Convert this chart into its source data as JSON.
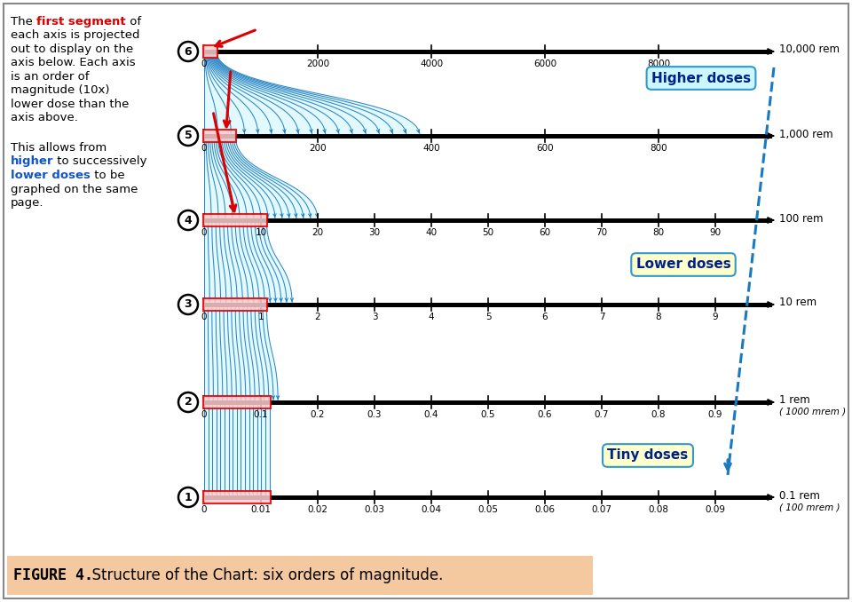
{
  "fig_width": 9.6,
  "fig_height": 6.78,
  "bg_color": "#ffffff",
  "caption_bg": "#f5c9a0",
  "line_color": "#1a7abf",
  "cyan_fill": "#aaf0ff",
  "dashed_arrow_color": "#1a7abf",
  "red_color": "#dd0000",
  "axes_max": [
    10000,
    1000,
    100,
    10,
    1.0,
    0.1
  ],
  "axes_ticks": [
    [
      0,
      2000,
      4000,
      6000,
      8000
    ],
    [
      0,
      200,
      400,
      600,
      800
    ],
    [
      0,
      10,
      20,
      30,
      40,
      50,
      60,
      70,
      80,
      90
    ],
    [
      0,
      1,
      2,
      3,
      4,
      5,
      6,
      7,
      8,
      9
    ],
    [
      0,
      0.1,
      0.2,
      0.3,
      0.4,
      0.5,
      0.6,
      0.7,
      0.8,
      0.9
    ],
    [
      0,
      0.01,
      0.02,
      0.03,
      0.04,
      0.05,
      0.06,
      0.07,
      0.08,
      0.09
    ]
  ],
  "axes_tick_labels": [
    [
      "0",
      "2000",
      "4000",
      "6000",
      "8000"
    ],
    [
      "0",
      "200",
      "400",
      "600",
      "800"
    ],
    [
      "0",
      "10",
      "20",
      "30",
      "40",
      "50",
      "60",
      "70",
      "80",
      "90"
    ],
    [
      "0",
      "1",
      "2",
      "3",
      "4",
      "5",
      "6",
      "7",
      "8",
      "9"
    ],
    [
      "0",
      "0.1",
      "0.2",
      "0.3",
      "0.4",
      "0.5",
      "0.6",
      "0.7",
      "0.8",
      "0.9"
    ],
    [
      "0",
      "0.01",
      "0.02",
      "0.03",
      "0.04",
      "0.05",
      "0.06",
      "0.07",
      "0.08",
      "0.09"
    ]
  ],
  "axes_end_labels": [
    "10,000 rem",
    "1,000 rem",
    "100 rem",
    "10 rem",
    "1 rem",
    "0.1 rem"
  ],
  "axes_sub_labels": [
    "",
    "",
    "",
    "",
    "( 1000 mrem )",
    "( 100 mrem )"
  ],
  "higher_doses_label": "Higher doses",
  "lower_doses_label": "Lower doses",
  "tiny_doses_label": "Tiny doses",
  "figure_caption_bold": "FIGURE 4.",
  "figure_caption_rest": "  Structure of the Chart: six orders of magnitude."
}
